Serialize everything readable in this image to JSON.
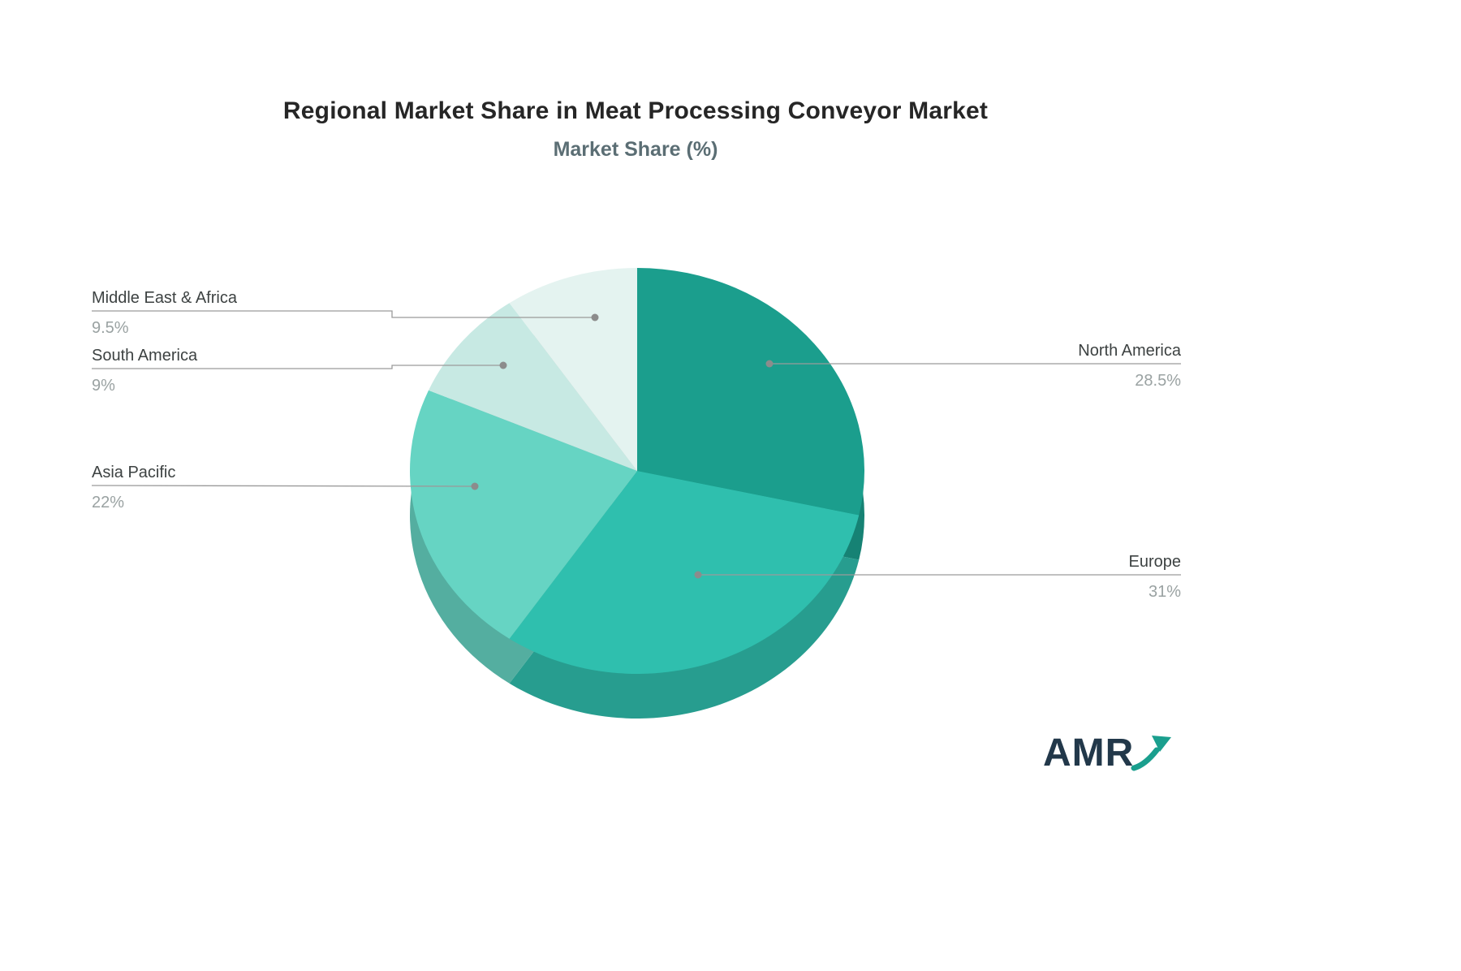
{
  "title": "Regional Market Share in Meat Processing Conveyor Market",
  "subtitle": "Market Share (%)",
  "logo": {
    "text": "AMR"
  },
  "chart_data": {
    "type": "pie",
    "title": "Regional Market Share in Meat Processing Conveyor Market",
    "subtitle": "Market Share (%)",
    "unit": "%",
    "total": 100,
    "start_angle_deg": -90,
    "direction": "clockwise",
    "style": "3d-pie",
    "slices": [
      {
        "label": "North America",
        "value": 28.5,
        "display": "28.5%",
        "color": "#1b9e8d"
      },
      {
        "label": "Europe",
        "value": 31,
        "display": "31%",
        "color": "#2fbfae"
      },
      {
        "label": "Asia Pacific",
        "value": 22,
        "display": "22%",
        "color": "#66d4c3"
      },
      {
        "label": "South America",
        "value": 9,
        "display": "9%",
        "color": "#c7e9e3"
      },
      {
        "label": "Middle East & Africa",
        "value": 9.5,
        "display": "9.5%",
        "color": "#e4f3f0"
      }
    ],
    "leader_line_color": "#9a9a9a",
    "label_text_color": "#3d4242",
    "value_text_color": "#9aa2a2"
  }
}
